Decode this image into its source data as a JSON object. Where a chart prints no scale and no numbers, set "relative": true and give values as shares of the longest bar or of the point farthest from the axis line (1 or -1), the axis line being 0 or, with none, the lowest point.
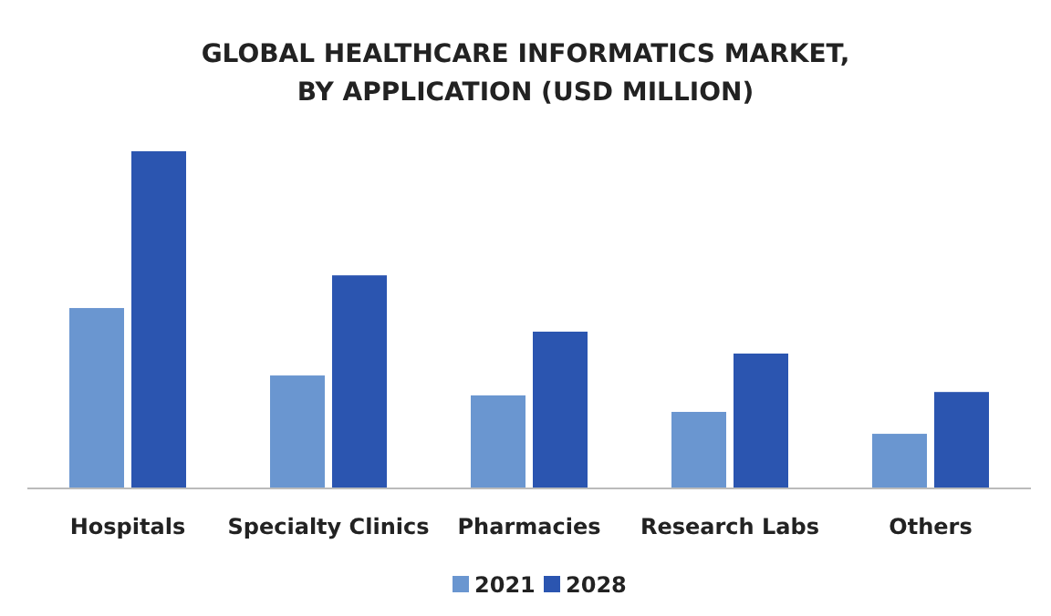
{
  "chart_data": {
    "type": "bar",
    "title": "GLOBAL HEALTHCARE INFORMATICS MARKET,\nBY APPLICATION (USD MILLION)",
    "relative": true,
    "categories": [
      "Hospitals",
      "Specialty Clinics",
      "Pharmacies",
      "Research Labs",
      "Others"
    ],
    "series": [
      {
        "name": "2021",
        "color": "#6a96d0",
        "values": [
          0.535,
          0.335,
          0.276,
          0.227,
          0.162
        ]
      },
      {
        "name": "2028",
        "color": "#2b55b0",
        "values": [
          1,
          0.632,
          0.465,
          0.4,
          0.286
        ]
      }
    ],
    "legend": "bottom",
    "grid": false
  }
}
